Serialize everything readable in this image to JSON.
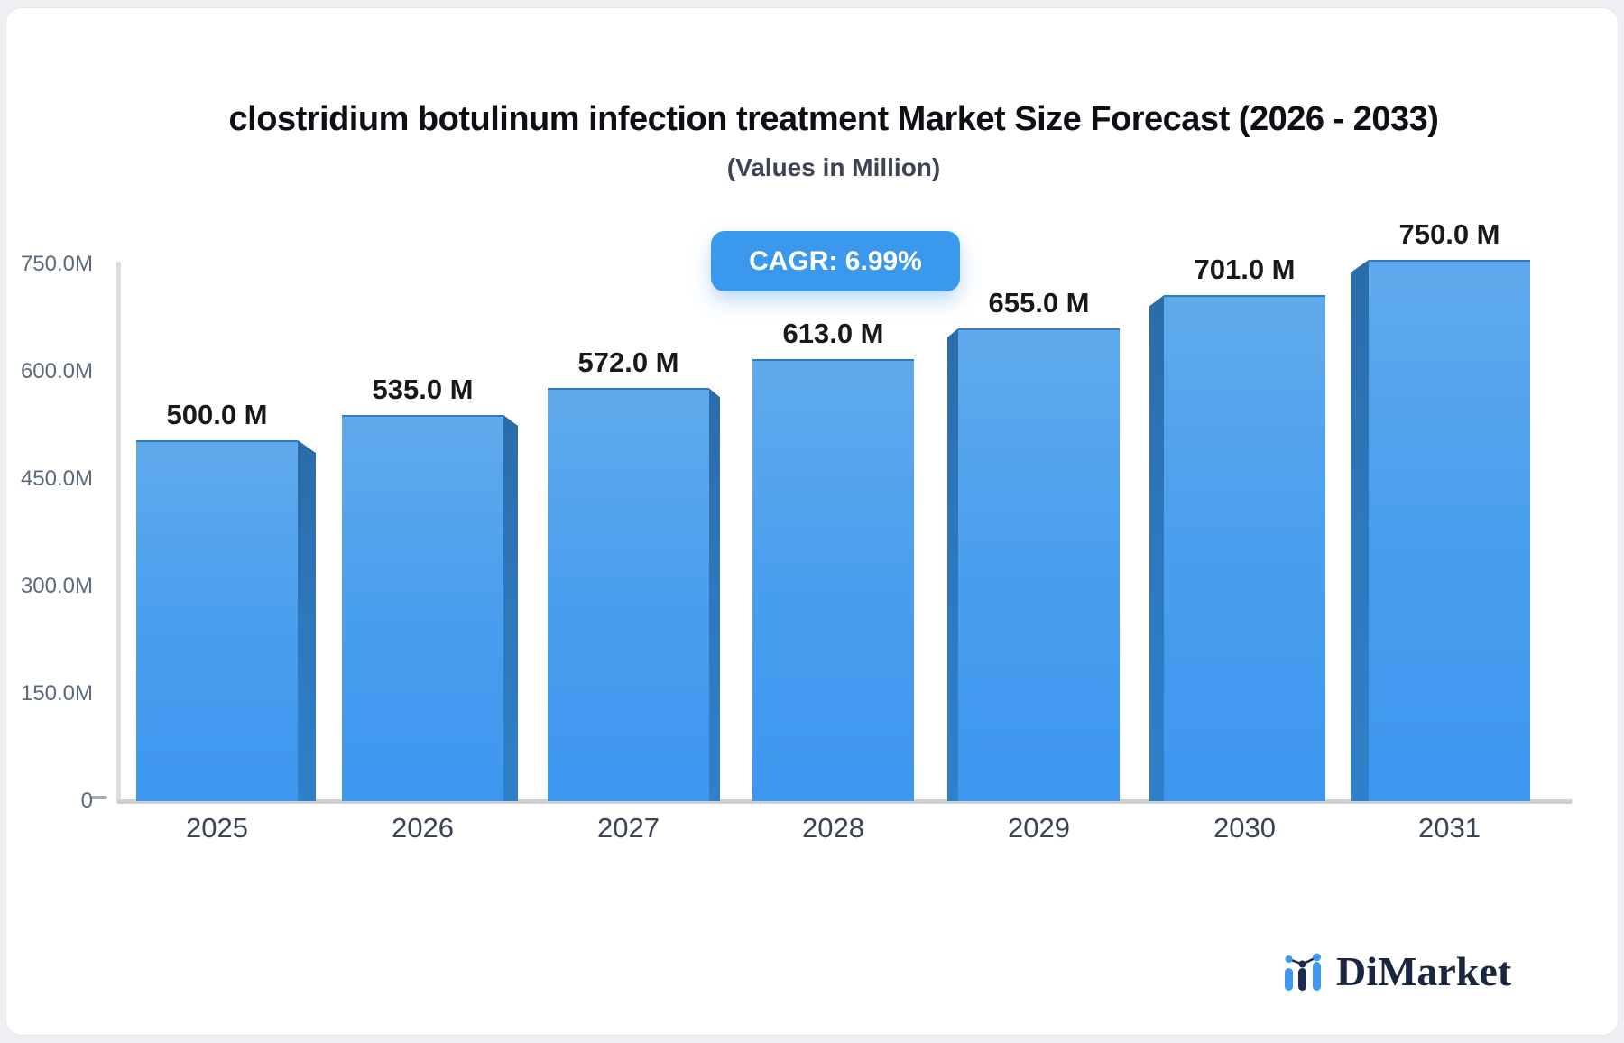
{
  "header": {
    "title": "clostridium botulinum infection treatment Market Size Forecast (2026 - 2033)",
    "subtitle": "(Values in Million)"
  },
  "badge": {
    "label": "CAGR: 6.99%",
    "bg_color": "#3b99ed",
    "text_color": "#ffffff"
  },
  "chart_data": {
    "type": "bar",
    "title": "clostridium botulinum infection treatment Market Size Forecast (2026 - 2033)",
    "subtitle": "(Values in Million)",
    "categories": [
      "2025",
      "2026",
      "2027",
      "2028",
      "2029",
      "2030",
      "2031"
    ],
    "values": [
      500,
      535,
      572,
      613,
      655,
      701,
      750
    ],
    "value_labels": [
      "500.0 M",
      "535.0 M",
      "572.0 M",
      "613.0 M",
      "655.0 M",
      "701.0 M",
      "750.0 M"
    ],
    "xlabel": "",
    "ylabel": "",
    "ylim": [
      0,
      750
    ],
    "y_ticks": [
      {
        "label": "750.0M",
        "value": 750
      },
      {
        "label": "600.0M",
        "value": 600
      },
      {
        "label": "450.0M",
        "value": 450
      },
      {
        "label": "300.0M",
        "value": 300
      },
      {
        "label": "150.0M",
        "value": 150
      },
      {
        "label": "0",
        "value": 0
      }
    ],
    "grid": false,
    "legend": null,
    "annotation": "CAGR: 6.99%",
    "bar_color_top": "#60aaec",
    "bar_color_bottom": "#3d97ef",
    "bar_side_color": "#2e77bb",
    "axis_color": "#ccd0d5"
  },
  "logo": {
    "text": "DiMarket",
    "icon": "bar-line-chart-icon",
    "icon_blue": "#3e97f0",
    "icon_navy": "#1d2b4e"
  }
}
